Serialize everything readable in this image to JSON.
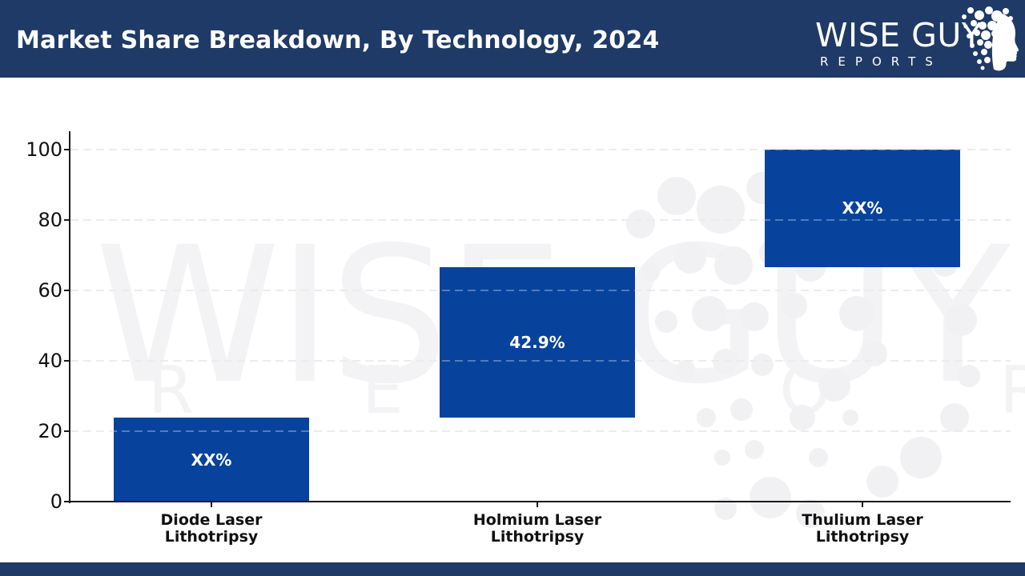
{
  "header": {
    "title": "Market Share Breakdown, By Technology, 2024",
    "logo_line1": "WISE GUY",
    "logo_line2": "REPORTS"
  },
  "watermark": {
    "line1": "WISE GUY",
    "line2": "R E P O R T S"
  },
  "colors": {
    "header_bg": "#1F3A66",
    "footer_bg": "#1F3A66",
    "bar_blue": "#07439C",
    "grid_gray": "#E4E4E4",
    "watermark_gray": "#F3F3F5",
    "axis_black": "#1A1A1A",
    "bar_label_white": "#FFFFFF"
  },
  "chart_data": {
    "type": "bar",
    "subtype": "stacked_segment_waterfall",
    "title": "Market Share Breakdown, By Technology, 2024",
    "categories": [
      "Diode Laser Lithotripsy",
      "Holmium Laser Lithotripsy",
      "Thulium Laser Lithotripsy"
    ],
    "category_lines": [
      [
        "Diode Laser",
        "Lithotripsy"
      ],
      [
        "Holmium Laser",
        "Lithotripsy"
      ],
      [
        "Thulium Laser",
        "Lithotripsy"
      ]
    ],
    "segments": [
      {
        "category": "Diode Laser Lithotripsy",
        "start": 0,
        "end": 23.8,
        "label": "XX%"
      },
      {
        "category": "Holmium Laser Lithotripsy",
        "start": 23.8,
        "end": 66.7,
        "label": "42.9%"
      },
      {
        "category": "Thulium Laser Lithotripsy",
        "start": 66.7,
        "end": 100,
        "label": "XX%"
      }
    ],
    "y_ticks": [
      0,
      20,
      40,
      60,
      80,
      100
    ],
    "ylim": [
      0,
      105
    ],
    "grid": "horizontal_dashed",
    "legend": "none",
    "xlabel": "",
    "ylabel": ""
  }
}
